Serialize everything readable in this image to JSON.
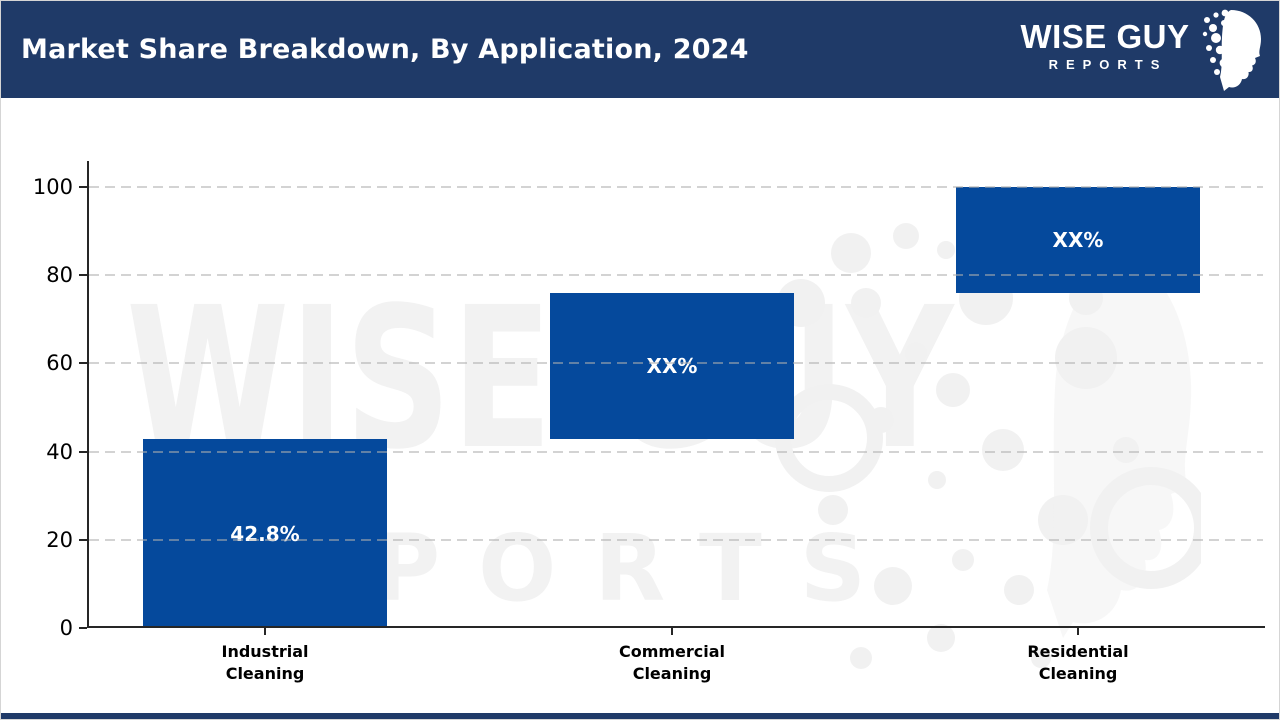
{
  "header": {
    "title": "Market Share Breakdown, By Application, 2024",
    "logo": {
      "name": "WISE GUY",
      "sub": "REPORTS"
    }
  },
  "watermark": {
    "line1": "WISE GUY",
    "line2": "REPORTS"
  },
  "chart_data": {
    "type": "bar",
    "subtype": "floating-waterfall",
    "title": "Market Share Breakdown, By Application, 2024",
    "categories": [
      "Industrial Cleaning",
      "Commercial Cleaning",
      "Residential Cleaning"
    ],
    "bars": [
      {
        "category": "Industrial Cleaning",
        "label": "42.8%",
        "start": 0,
        "end": 42.8
      },
      {
        "category": "Commercial Cleaning",
        "label": "XX%",
        "start": 42.8,
        "end": 76
      },
      {
        "category": "Residential Cleaning",
        "label": "XX%",
        "start": 76,
        "end": 100
      }
    ],
    "xlabel": "",
    "ylabel": "",
    "ylim": [
      0,
      105
    ],
    "yticks": [
      0,
      20,
      40,
      60,
      80,
      100
    ],
    "grid": "horizontal dashed",
    "legend": "none",
    "bar_color": "#05499c",
    "bar_label_color": "#ffffff",
    "header_color": "#1f3a68"
  }
}
